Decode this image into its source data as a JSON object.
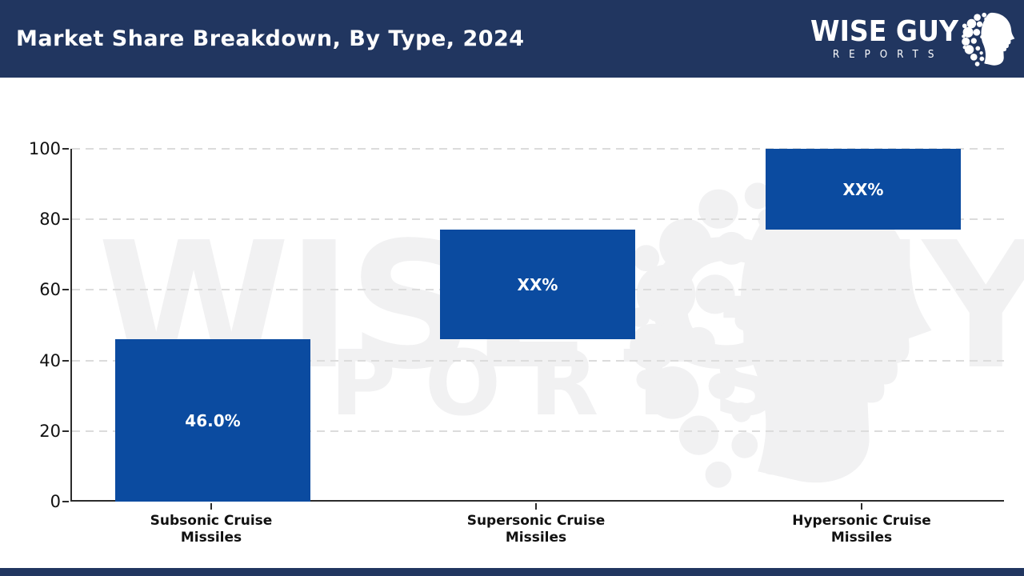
{
  "header": {
    "title": "Market Share Breakdown, By Type, 2024",
    "logo": {
      "line1": "WISE GUY",
      "line2": "REPORTS"
    }
  },
  "watermark": {
    "line1": "WISE GUY",
    "line2": "REPORTS"
  },
  "colors": {
    "header_bg": "#213660",
    "bar": "#0b4ba0",
    "grid": "#dcdcdc",
    "axis": "#2b2b2b",
    "bar_label": "#ffffff",
    "watermark": "#f1f1f2"
  },
  "chart_data": {
    "type": "bar",
    "subtype": "waterfall",
    "title": "Market Share Breakdown, By Type, 2024",
    "categories": [
      "Subsonic Cruise Missiles",
      "Supersonic Cruise Missiles",
      "Hypersonic Cruise Missiles"
    ],
    "category_label_lines": [
      [
        "Subsonic Cruise",
        "Missiles"
      ],
      [
        "Supersonic Cruise",
        "Missiles"
      ],
      [
        "Hypersonic Cruise",
        "Missiles"
      ]
    ],
    "segments": [
      {
        "category": "Subsonic Cruise Missiles",
        "start": 0,
        "end": 46,
        "label": "46.0%"
      },
      {
        "category": "Supersonic Cruise Missiles",
        "start": 46,
        "end": 77,
        "label": "XX%"
      },
      {
        "category": "Hypersonic Cruise Missiles",
        "start": 77,
        "end": 100,
        "label": "XX%"
      }
    ],
    "yticks": [
      0,
      20,
      40,
      60,
      80,
      100
    ],
    "ylim": [
      0,
      100
    ],
    "xlabel": "",
    "ylabel": "",
    "grid": "dashed-horizontal",
    "legend": "none"
  }
}
